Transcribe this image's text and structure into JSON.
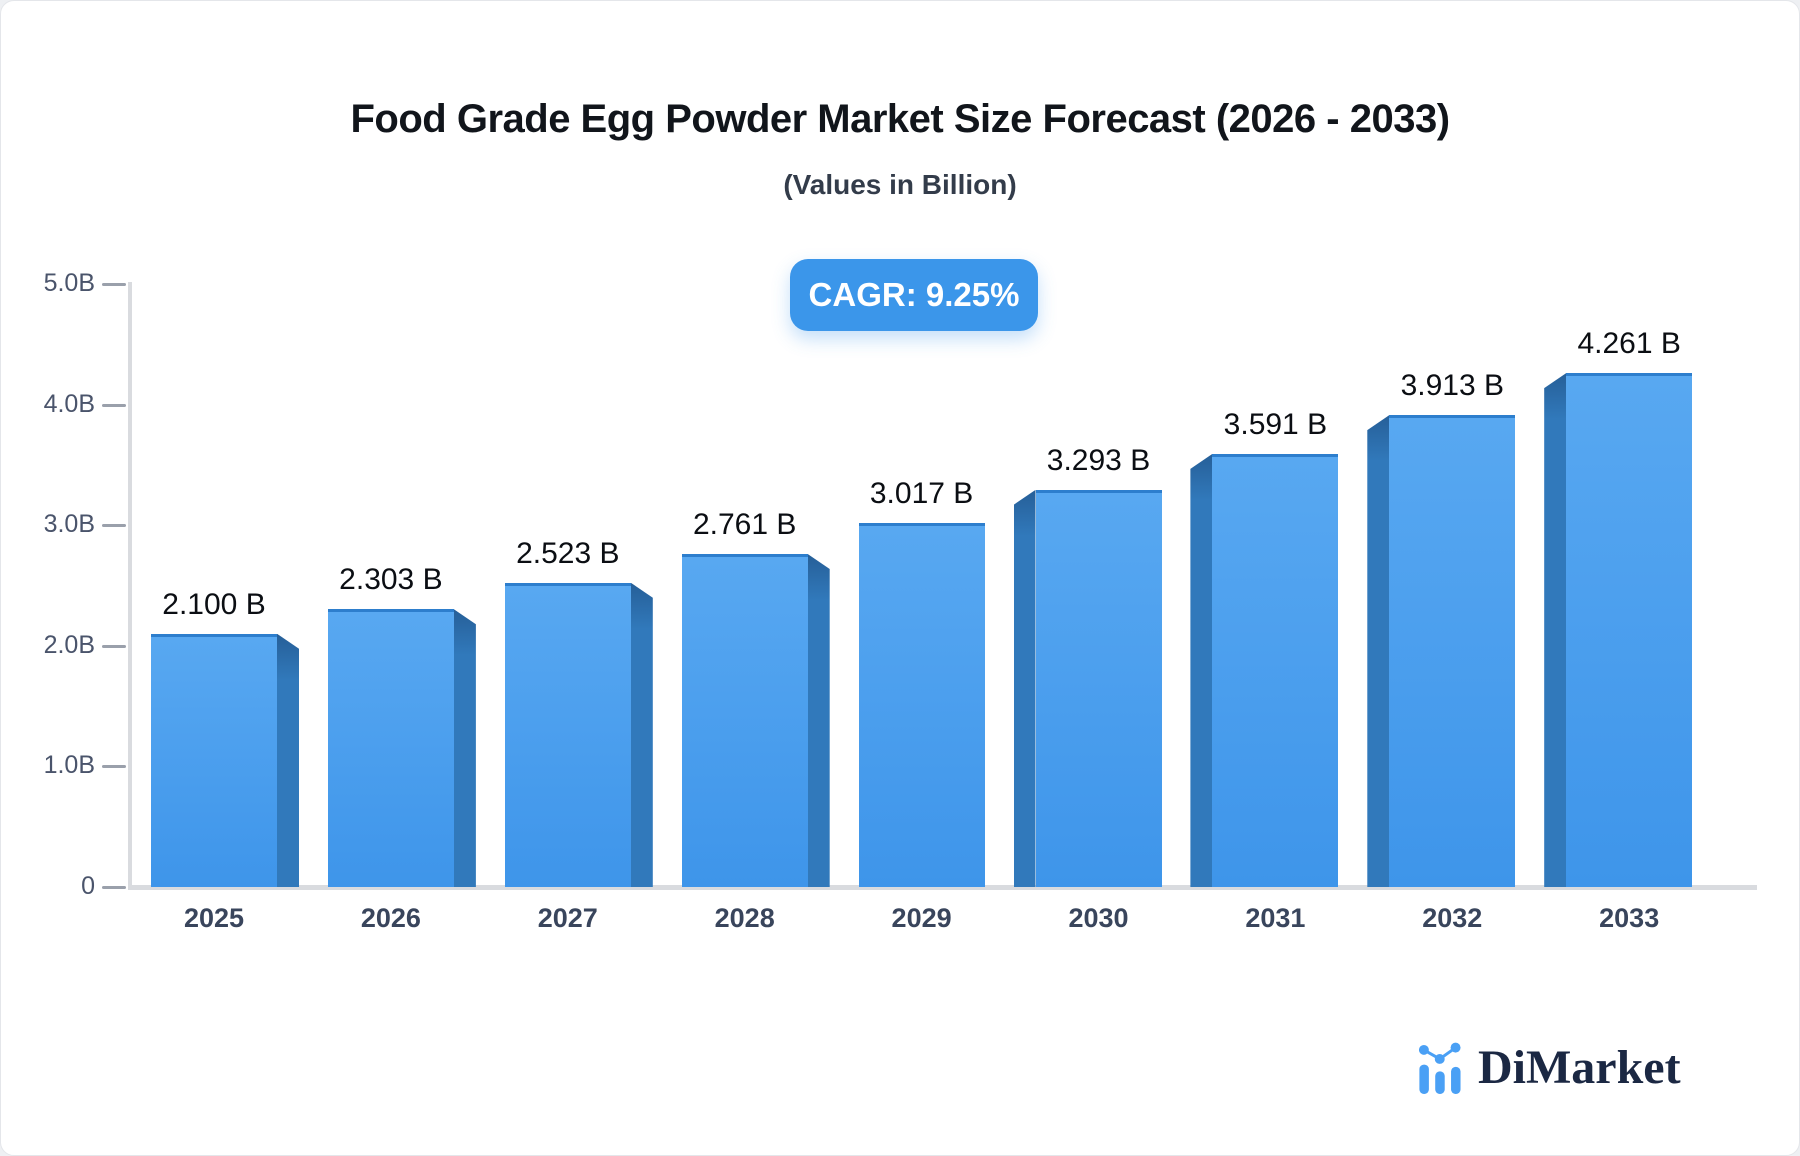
{
  "header": {
    "title": "Food Grade Egg Powder Market Size Forecast (2026 - 2033)",
    "subtitle": "(Values in Billion)"
  },
  "badge": {
    "label": "CAGR: 9.25%"
  },
  "chart_data": {
    "type": "bar",
    "title": "Food Grade Egg Powder Market Size Forecast (2026 - 2033)",
    "subtitle": "(Values in Billion)",
    "cagr_percent": "9.25%",
    "unit": "Billion",
    "categories": [
      "2025",
      "2026",
      "2027",
      "2028",
      "2029",
      "2030",
      "2031",
      "2032",
      "2033"
    ],
    "values": [
      2.1,
      2.303,
      2.523,
      2.761,
      3.017,
      3.293,
      3.591,
      3.913,
      4.261
    ],
    "bar_labels": [
      "2.100 B",
      "2.303 B",
      "2.523 B",
      "2.761 B",
      "3.017 B",
      "3.293 B",
      "3.591 B",
      "3.913 B",
      "4.261 B"
    ],
    "ytick_labels": [
      "0",
      "1.0B",
      "2.0B",
      "3.0B",
      "4.0B",
      "5.0B"
    ],
    "ytick_values": [
      0,
      1,
      2,
      3,
      4,
      5
    ],
    "ylim": [
      0,
      5
    ],
    "xlabel": "",
    "ylabel": "",
    "grid": false,
    "legend": false,
    "colors": {
      "bar_face_top": "#58a8f1",
      "bar_face": "#3e95ea",
      "bar_top_edge": "#2d7ecd",
      "bar_side": "#3179bb",
      "bar_side_dark": "#265f98",
      "axis_line": "#d9dbdf",
      "tick_dash": "#9aa0ab",
      "ytick_text": "#4a546b",
      "xtick_text": "#39455c",
      "label_text": "#0b0e13",
      "badge_bg": "#3b96ea",
      "badge_text": "#ffffff"
    }
  },
  "logo": {
    "text": "DiMarket",
    "icon": "mini-bar-line-chart-icon"
  }
}
